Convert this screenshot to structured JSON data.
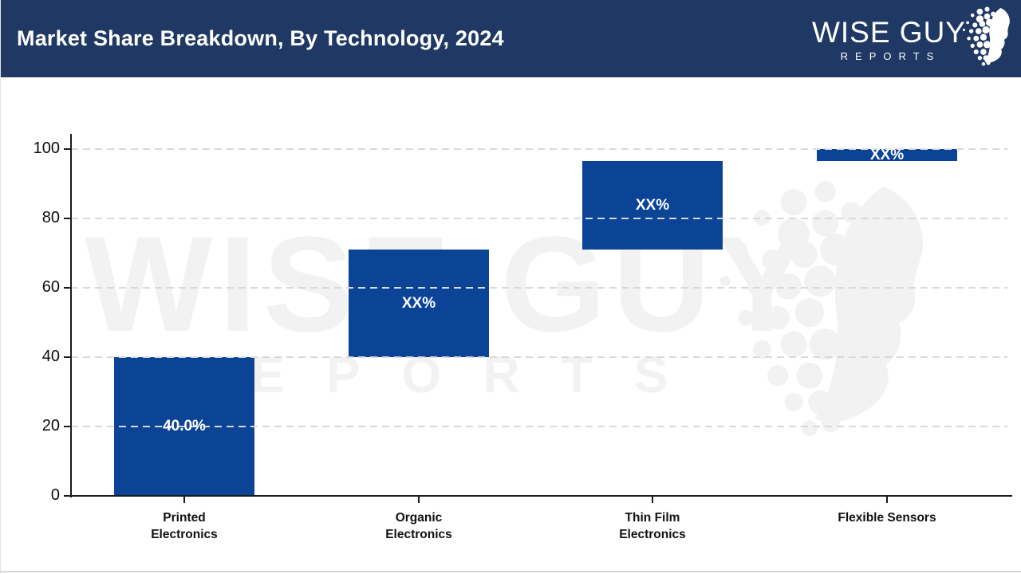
{
  "header": {
    "title": "Market Share Breakdown, By Technology, 2024",
    "logo_line1": "WISE GUY",
    "logo_line2": "REPORTS"
  },
  "watermark": {
    "line1": "WISE GUY",
    "line2": "REPORTS"
  },
  "colors": {
    "header_bg": "#1f3864",
    "bar": "#0b4397",
    "grid": "#d9d9d9",
    "axis": "#1a1a1a",
    "bar_label_text": "#ffffff",
    "watermark": "#f2f2f2"
  },
  "chart_data": {
    "type": "bar",
    "subtype": "waterfall",
    "title": "Market Share Breakdown, By Technology, 2024",
    "xlabel": "",
    "ylabel": "",
    "ylim": [
      0,
      100
    ],
    "yticks": [
      0,
      20,
      40,
      60,
      80,
      100
    ],
    "grid": "horizontal-dashed",
    "legend": "none",
    "bar_color": "#0b4397",
    "categories": [
      "Printed Electronics",
      "Organic Electronics",
      "Thin Film Electronics",
      "Flexible Sensors"
    ],
    "bars": [
      {
        "category_lines": [
          "Printed",
          "Electronics"
        ],
        "label": "40.0%",
        "start": 0,
        "end": 40
      },
      {
        "category_lines": [
          "Organic",
          "Electronics"
        ],
        "label": "XX%",
        "start": 40,
        "end": 71
      },
      {
        "category_lines": [
          "Thin Film",
          "Electronics"
        ],
        "label": "XX%",
        "start": 71,
        "end": 96.5
      },
      {
        "category_lines": [
          "Flexible Sensors"
        ],
        "label": "XX%",
        "start": 96.5,
        "end": 100
      }
    ]
  }
}
